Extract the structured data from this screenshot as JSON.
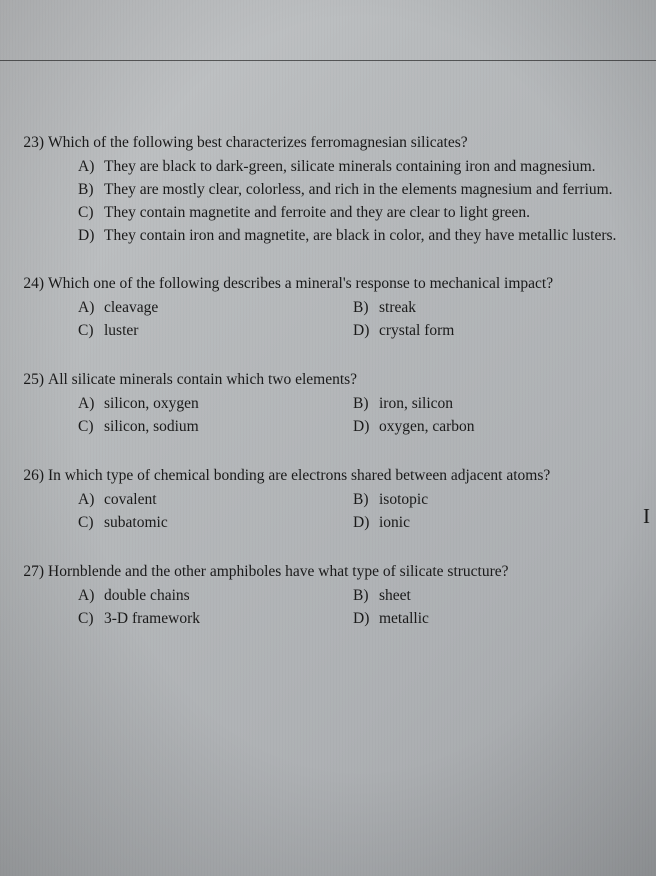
{
  "colors": {
    "bg_grad_start": "#c5c7c9",
    "bg_grad_end": "#a2a5a8",
    "text": "#1a1a1a",
    "rule": "rgba(0,0,0,0.55)"
  },
  "typography": {
    "family": "Georgia, 'Times New Roman', serif",
    "size_pt": 15.5,
    "line_height": 1.42
  },
  "questions": [
    {
      "number": "23)",
      "stem": "Which of the following best characterizes ferromagnesian silicates?",
      "layout": "full",
      "options": [
        {
          "letter": "A)",
          "text": "They are black to dark-green, silicate minerals containing iron and magnesium."
        },
        {
          "letter": "B)",
          "text": "They are mostly clear, colorless, and rich in the elements magnesium and ferrium."
        },
        {
          "letter": "C)",
          "text": "They contain magnetite and ferroite and they are clear to light green."
        },
        {
          "letter": "D)",
          "text": "They contain iron and magnetite, are black in color, and they have metallic lusters."
        }
      ]
    },
    {
      "number": "24)",
      "stem": "Which one of the following describes a mineral's response to mechanical impact?",
      "layout": "grid",
      "options": [
        {
          "letter": "A)",
          "text": "cleavage"
        },
        {
          "letter": "B)",
          "text": "streak"
        },
        {
          "letter": "C)",
          "text": "luster"
        },
        {
          "letter": "D)",
          "text": "crystal form"
        }
      ]
    },
    {
      "number": "25)",
      "stem": "All silicate minerals contain which two elements?",
      "layout": "grid",
      "options": [
        {
          "letter": "A)",
          "text": "silicon, oxygen"
        },
        {
          "letter": "B)",
          "text": "iron, silicon"
        },
        {
          "letter": "C)",
          "text": "silicon, sodium"
        },
        {
          "letter": "D)",
          "text": "oxygen, carbon"
        }
      ]
    },
    {
      "number": "26)",
      "stem": "In which type of chemical bonding are electrons shared between adjacent atoms?",
      "layout": "grid",
      "options": [
        {
          "letter": "A)",
          "text": "covalent"
        },
        {
          "letter": "B)",
          "text": "isotopic"
        },
        {
          "letter": "C)",
          "text": "subatomic"
        },
        {
          "letter": "D)",
          "text": "ionic"
        }
      ]
    },
    {
      "number": "27)",
      "stem": "Hornblende and the other amphiboles have what type of silicate structure?",
      "layout": "grid",
      "options": [
        {
          "letter": "A)",
          "text": "double chains"
        },
        {
          "letter": "B)",
          "text": "sheet"
        },
        {
          "letter": "C)",
          "text": "3-D framework"
        },
        {
          "letter": "D)",
          "text": "metallic"
        }
      ]
    }
  ],
  "cursor_glyph": "I"
}
